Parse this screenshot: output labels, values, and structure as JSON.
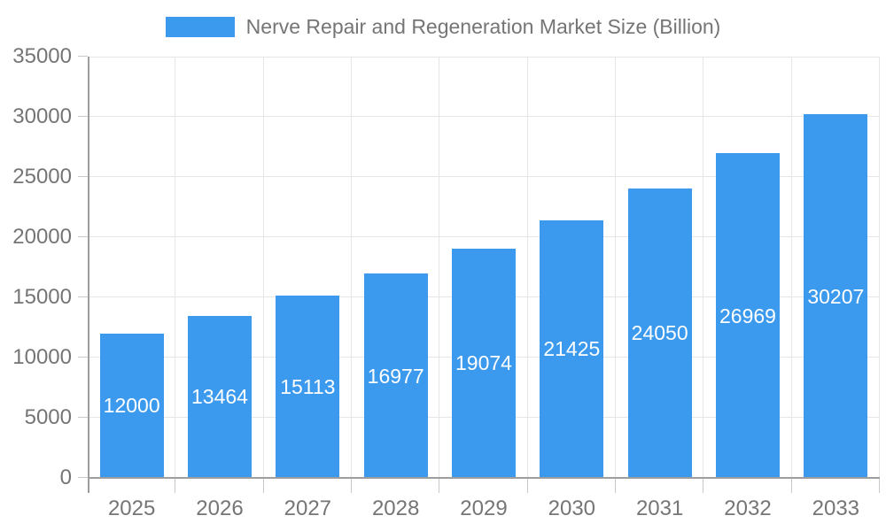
{
  "chart_data": {
    "type": "bar",
    "title": "Nerve Repair and Regeneration Market Size (Billion)",
    "legend": {
      "position": "top",
      "label": "Nerve Repair and Regeneration Market Size (Billion)"
    },
    "categories": [
      "2025",
      "2026",
      "2027",
      "2028",
      "2029",
      "2030",
      "2031",
      "2032",
      "2033"
    ],
    "values": [
      12000,
      13464,
      15113,
      16977,
      19074,
      21425,
      24050,
      26969,
      30207
    ],
    "xlabel": "",
    "ylabel": "",
    "ylim": [
      0,
      35000
    ],
    "yticks": [
      0,
      5000,
      10000,
      15000,
      20000,
      25000,
      30000,
      35000
    ],
    "grid": true,
    "bar_value_labels_inside": true,
    "colors": {
      "bar": "#3B99EE",
      "bar_label": "#FFFFFF",
      "text": "#757575",
      "axis": "#9E9E9E",
      "grid": "#E6E6E6",
      "tick": "#C9C9C9",
      "background": "#FFFFFF"
    }
  }
}
